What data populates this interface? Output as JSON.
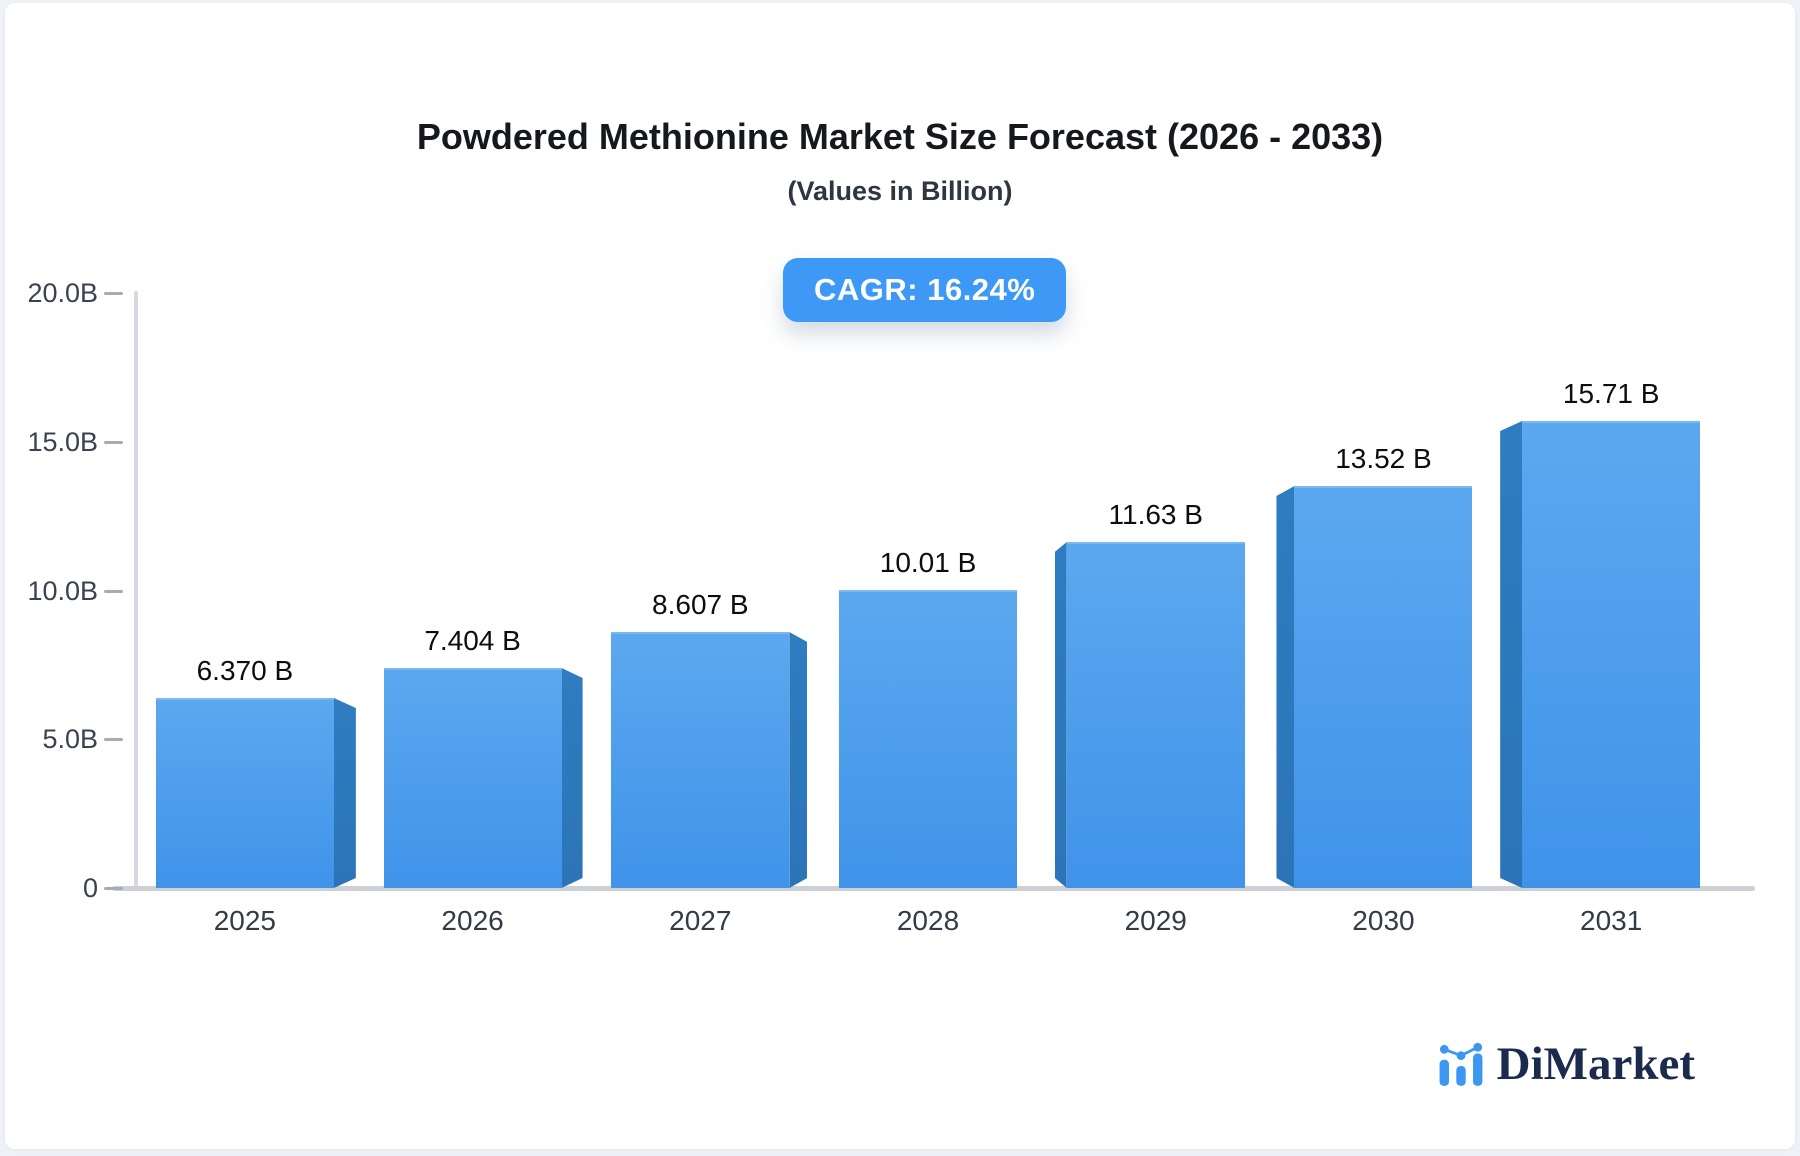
{
  "title": "Powdered Methionine Market Size Forecast (2026 - 2033)",
  "subtitle": "(Values in Billion)",
  "badge": {
    "label": "CAGR: 16.24%"
  },
  "y_axis": {
    "ticks": [
      {
        "label": "20.0B",
        "value": 20
      },
      {
        "label": "15.0B",
        "value": 15
      },
      {
        "label": "10.0B",
        "value": 10
      },
      {
        "label": "5.0B",
        "value": 5
      },
      {
        "label": "0",
        "value": 0
      }
    ]
  },
  "chart_data": {
    "type": "bar",
    "title": "Powdered Methionine Market Size Forecast (2026 - 2033)",
    "subtitle": "(Values in Billion)",
    "cagr_label": "CAGR: 16.24%",
    "categories": [
      "2025",
      "2026",
      "2027",
      "2028",
      "2029",
      "2030",
      "2031"
    ],
    "values": [
      6.37,
      7.404,
      8.607,
      10.01,
      11.63,
      13.52,
      15.71
    ],
    "value_labels": [
      "6.370 B",
      "7.404 B",
      "8.607 B",
      "10.01 B",
      "11.63 B",
      "13.52 B",
      "15.71 B"
    ],
    "unit": "Billion",
    "xlabel": "",
    "ylabel": "",
    "ylim": [
      0,
      20
    ],
    "yticks": [
      0,
      5,
      10,
      15,
      20
    ],
    "grid": false,
    "legend": false,
    "bar_style": "3d-perspective-blue"
  },
  "logo": {
    "name": "DiMarket",
    "icon": "bar-chart-sparkline-icon"
  },
  "colors": {
    "accent_blue": "#3D99F5",
    "bar_top": "#5CA8F0",
    "bar_bottom": "#3F93E9",
    "bar_side": "#2C74B8",
    "axis_line": "#D6DAE0",
    "logo_navy": "#1B2B4D",
    "logo_blue": "#3B97F0"
  }
}
